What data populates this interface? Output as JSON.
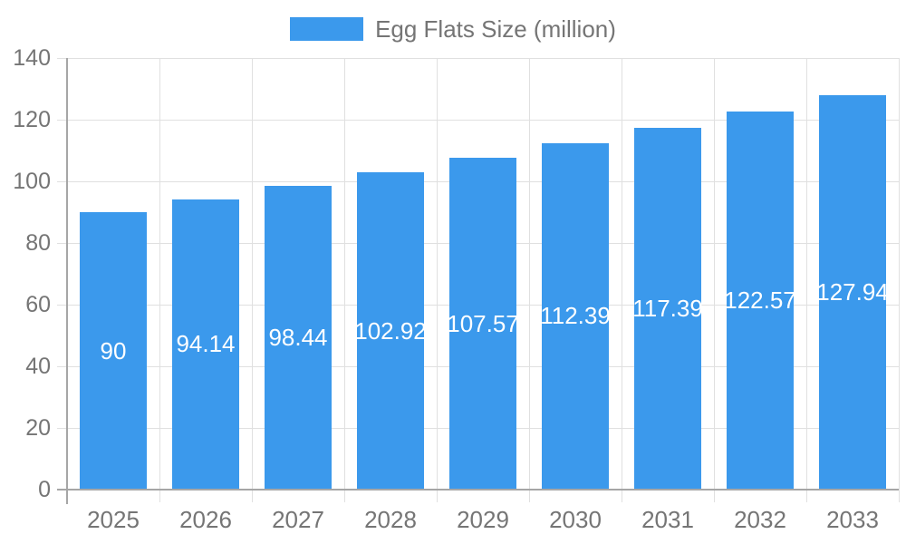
{
  "chart_data": {
    "type": "bar",
    "title": "Egg Flats Size (million)",
    "legend_label": "Egg Flats Size (million)",
    "legend_position": "top-center",
    "categories": [
      "2025",
      "2026",
      "2027",
      "2028",
      "2029",
      "2030",
      "2031",
      "2032",
      "2033"
    ],
    "values": [
      90,
      94.14,
      98.44,
      102.92,
      107.57,
      112.39,
      117.39,
      122.57,
      127.94
    ],
    "value_labels": [
      "90",
      "94.14",
      "98.44",
      "102.92",
      "107.57",
      "112.39",
      "117.39",
      "122.57",
      "127.94"
    ],
    "xlabel": "",
    "ylabel": "",
    "ylim": [
      0,
      140
    ],
    "yticks": [
      0,
      20,
      40,
      60,
      80,
      100,
      120,
      140
    ],
    "grid": true,
    "colors": {
      "bar": "#3B99EC",
      "value_label": "#FFFFFF",
      "axis_label": "#757575",
      "grid": "#E0E0E0",
      "axis_line": "#A6A6A6",
      "background": "#FFFFFF"
    }
  }
}
